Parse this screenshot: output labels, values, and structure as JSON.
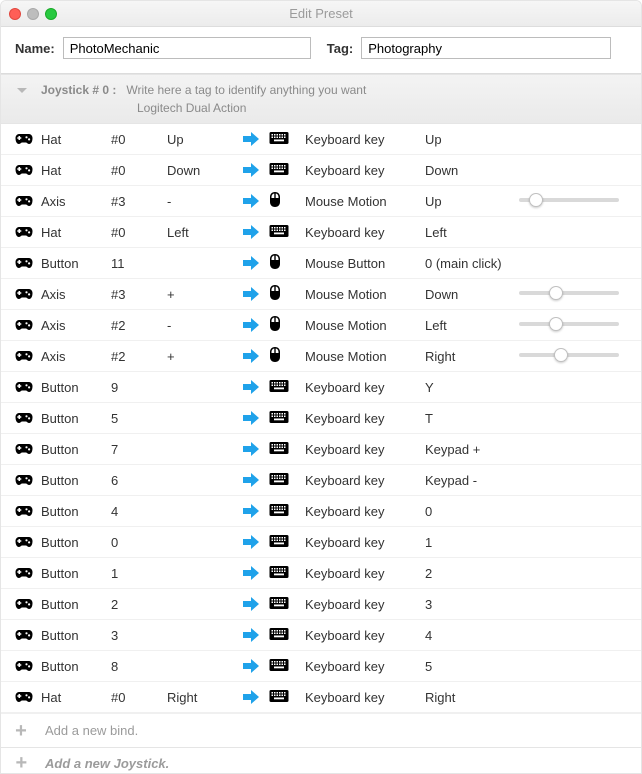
{
  "title": "Edit Preset",
  "name_label": "Name:",
  "name_value": "PhotoMechanic",
  "tag_label": "Tag:",
  "tag_value": "Photography",
  "colors": {
    "arrow": "#1fa2ea",
    "header_gray": "#8a8a8a",
    "add_gray": "#9b9b9b"
  },
  "joystick_header": {
    "prefix": "Joystick #  0 :",
    "hint": "Write here a tag to identify anything you want",
    "device": "Logitech Dual Action"
  },
  "binds": [
    {
      "in_kind": "Hat",
      "in_num": "#0",
      "in_dir": "Up",
      "out_icon": "keyboard",
      "out_kind": "Keyboard key",
      "out_val": "Up",
      "slider": null
    },
    {
      "in_kind": "Hat",
      "in_num": "#0",
      "in_dir": "Down",
      "out_icon": "keyboard",
      "out_kind": "Keyboard key",
      "out_val": "Down",
      "slider": null
    },
    {
      "in_kind": "Axis",
      "in_num": "#3",
      "in_dir": "-",
      "out_icon": "mouse",
      "out_kind": "Mouse Motion",
      "out_val": "Up",
      "slider": 10
    },
    {
      "in_kind": "Hat",
      "in_num": "#0",
      "in_dir": "Left",
      "out_icon": "keyboard",
      "out_kind": "Keyboard key",
      "out_val": "Left",
      "slider": null
    },
    {
      "in_kind": "Button",
      "in_num": "11",
      "in_dir": "",
      "out_icon": "mouse",
      "out_kind": "Mouse Button",
      "out_val": "0 (main click)",
      "slider": null
    },
    {
      "in_kind": "Axis",
      "in_num": "#3",
      "in_dir": "+",
      "out_icon": "mouse",
      "out_kind": "Mouse Motion",
      "out_val": "Down",
      "slider": 30
    },
    {
      "in_kind": "Axis",
      "in_num": "#2",
      "in_dir": "-",
      "out_icon": "mouse",
      "out_kind": "Mouse Motion",
      "out_val": "Left",
      "slider": 30
    },
    {
      "in_kind": "Axis",
      "in_num": "#2",
      "in_dir": "+",
      "out_icon": "mouse",
      "out_kind": "Mouse Motion",
      "out_val": "Right",
      "slider": 35
    },
    {
      "in_kind": "Button",
      "in_num": "9",
      "in_dir": "",
      "out_icon": "keyboard",
      "out_kind": "Keyboard key",
      "out_val": "Y",
      "slider": null
    },
    {
      "in_kind": "Button",
      "in_num": "5",
      "in_dir": "",
      "out_icon": "keyboard",
      "out_kind": "Keyboard key",
      "out_val": "T",
      "slider": null
    },
    {
      "in_kind": "Button",
      "in_num": "7",
      "in_dir": "",
      "out_icon": "keyboard",
      "out_kind": "Keyboard key",
      "out_val": "Keypad +",
      "slider": null
    },
    {
      "in_kind": "Button",
      "in_num": "6",
      "in_dir": "",
      "out_icon": "keyboard",
      "out_kind": "Keyboard key",
      "out_val": "Keypad -",
      "slider": null
    },
    {
      "in_kind": "Button",
      "in_num": "4",
      "in_dir": "",
      "out_icon": "keyboard",
      "out_kind": "Keyboard key",
      "out_val": "0",
      "slider": null
    },
    {
      "in_kind": "Button",
      "in_num": "0",
      "in_dir": "",
      "out_icon": "keyboard",
      "out_kind": "Keyboard key",
      "out_val": "1",
      "slider": null
    },
    {
      "in_kind": "Button",
      "in_num": "1",
      "in_dir": "",
      "out_icon": "keyboard",
      "out_kind": "Keyboard key",
      "out_val": "2",
      "slider": null
    },
    {
      "in_kind": "Button",
      "in_num": "2",
      "in_dir": "",
      "out_icon": "keyboard",
      "out_kind": "Keyboard key",
      "out_val": "3",
      "slider": null
    },
    {
      "in_kind": "Button",
      "in_num": "3",
      "in_dir": "",
      "out_icon": "keyboard",
      "out_kind": "Keyboard key",
      "out_val": "4",
      "slider": null
    },
    {
      "in_kind": "Button",
      "in_num": "8",
      "in_dir": "",
      "out_icon": "keyboard",
      "out_kind": "Keyboard key",
      "out_val": "5",
      "slider": null
    },
    {
      "in_kind": "Hat",
      "in_num": "#0",
      "in_dir": "Right",
      "out_icon": "keyboard",
      "out_kind": "Keyboard key",
      "out_val": "Right",
      "slider": null
    }
  ],
  "add_bind_label": "Add a new bind.",
  "add_joystick_label": "Add a new Joystick."
}
